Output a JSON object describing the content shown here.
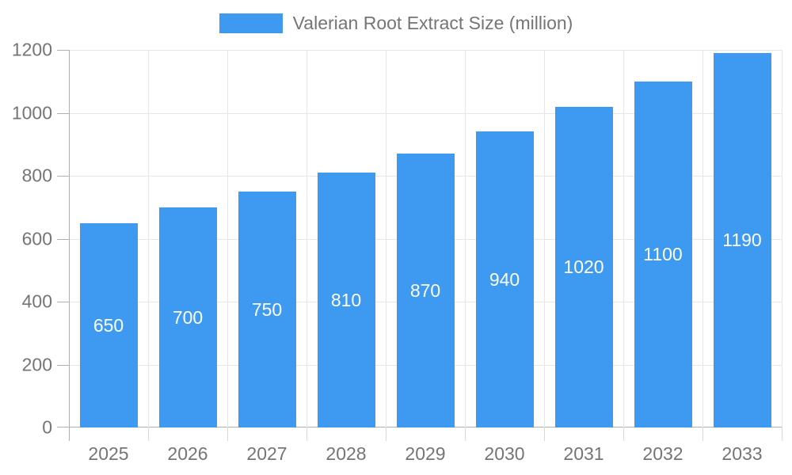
{
  "chart_data": {
    "type": "bar",
    "title": "",
    "legend_label": "Valerian Root Extract Size (million)",
    "categories": [
      "2025",
      "2026",
      "2027",
      "2028",
      "2029",
      "2030",
      "2031",
      "2032",
      "2033"
    ],
    "values": [
      650,
      700,
      750,
      810,
      870,
      940,
      1020,
      1100,
      1190
    ],
    "xlabel": "",
    "ylabel": "",
    "ylim": [
      0,
      1200
    ],
    "yticks": [
      0,
      200,
      400,
      600,
      800,
      1000,
      1200
    ],
    "grid": true,
    "legend_position": "top-center",
    "bar_labels": "inside-center",
    "colors": {
      "bar": "#3D9AF0",
      "bar_label_text": "#FFFFFF",
      "axis_text": "#757575",
      "grid_line": "#E6E6E6",
      "axis_line": "#B0B0B0",
      "category_tick": "#D9D9D9",
      "background": "#FFFFFF"
    }
  }
}
